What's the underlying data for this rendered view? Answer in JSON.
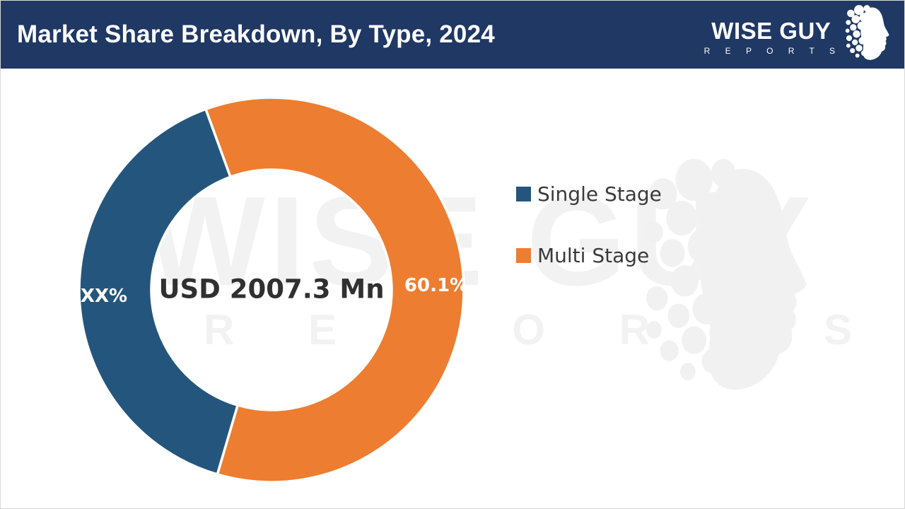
{
  "header": {
    "title": "Market Share Breakdown, By Type, 2024",
    "bg_color": "#1F3864",
    "logo": {
      "line1": "WISE GUY",
      "line2": "R E P O R T S"
    }
  },
  "watermark": {
    "line1": "WISE GUY",
    "line2": "R E P O R T S"
  },
  "chart_data": {
    "type": "pie",
    "subtype": "donut",
    "title": "Market Share Breakdown, By Type, 2024",
    "categories": [
      "Single Stage",
      "Multi Stage"
    ],
    "values": [
      39.9,
      60.1
    ],
    "slice_labels": [
      "XX%",
      "60.1%"
    ],
    "colors": [
      "#24567D",
      "#ED7D31"
    ],
    "center_label": "USD 2007.3 Mn",
    "legend_position": "right",
    "start_angle_deg": 110,
    "direction": "clockwise"
  },
  "labels": {
    "single_slice": "XX%",
    "multi_slice": "60.1%",
    "center": "USD 2007.3 Mn"
  },
  "legend": {
    "items": [
      {
        "label": "Single Stage",
        "color": "#24567D"
      },
      {
        "label": "Multi Stage",
        "color": "#ED7D31"
      }
    ]
  }
}
